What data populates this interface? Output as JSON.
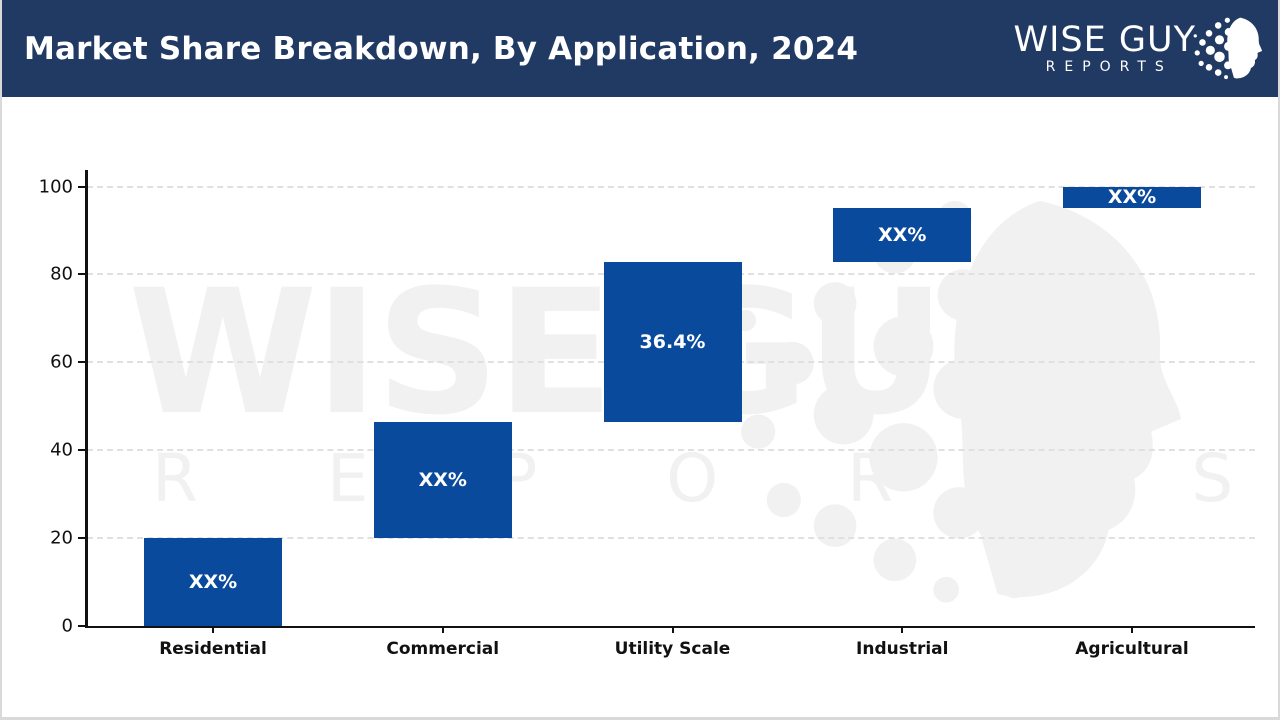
{
  "header": {
    "title": "Market Share Breakdown, By Application, 2024",
    "bg_color": "#213a63",
    "logo": {
      "line1": "WISE GUY",
      "line2": "REPORTS"
    }
  },
  "watermark": {
    "line1": "WISE GUY",
    "line2": "R E P O R T S"
  },
  "chart_data": {
    "type": "bar",
    "subtype": "waterfall",
    "title": "Market Share Breakdown, By Application, 2024",
    "categories": [
      "Residential",
      "Commercial",
      "Utility Scale",
      "Industrial",
      "Agricultural"
    ],
    "segments": [
      {
        "category": "Residential",
        "start": 0,
        "end": 20,
        "size": 20,
        "label": "XX%"
      },
      {
        "category": "Commercial",
        "start": 20,
        "end": 46.4,
        "size": 26.4,
        "label": "XX%"
      },
      {
        "category": "Utility Scale",
        "start": 46.4,
        "end": 82.8,
        "size": 36.4,
        "label": "36.4%"
      },
      {
        "category": "Industrial",
        "start": 82.8,
        "end": 95.2,
        "size": 12.4,
        "label": "XX%"
      },
      {
        "category": "Agricultural",
        "start": 95.2,
        "end": 100,
        "size": 4.8,
        "label": "XX%"
      }
    ],
    "y_ticks": [
      0,
      20,
      40,
      60,
      80,
      100
    ],
    "ylim": [
      0,
      104
    ],
    "xlabel": "",
    "ylabel": "",
    "grid": "horizontal-dashed",
    "legend": "none",
    "bar_color": "#0a4a9c",
    "bar_label_color": "#ffffff",
    "gridline_color": "#e0e0e0",
    "axis_color": "#111111"
  }
}
